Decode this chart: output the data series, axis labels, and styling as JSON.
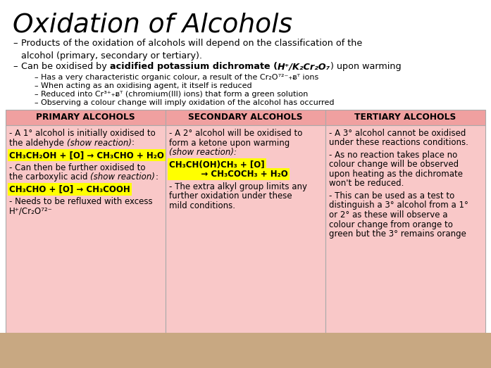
{
  "title": "Oxidation of Alcohols",
  "bg_color": "#ffffff",
  "bottom_bg_color": "#c8a882",
  "bullet1": "Products of the oxidation of alcohols will depend on the classification of the\nalcohol (primary, secondary or tertiary).",
  "sub_bullets": [
    "Has a very characteristic organic colour, a result of the Cr₂O⁷²⁻₊ᴃᵀ ions",
    "When acting as an oxidising agent, it itself is reduced",
    "Reduced into Cr³⁺₊ᴃᵀ (chromium(III) ions) that form a green solution",
    "Observing a colour change will imply oxidation of the alcohol has occurred"
  ],
  "table_header_bg": "#f0a0a0",
  "table_body_bg": "#f9c8c8",
  "table_border_color": "#aaaaaa",
  "col1_header": "PRIMARY ALCOHOLS",
  "col2_header": "SECONDARY ALCOHOLS",
  "col3_header": "TERTIARY ALCOHOLS",
  "highlight_color": "#ffff00"
}
